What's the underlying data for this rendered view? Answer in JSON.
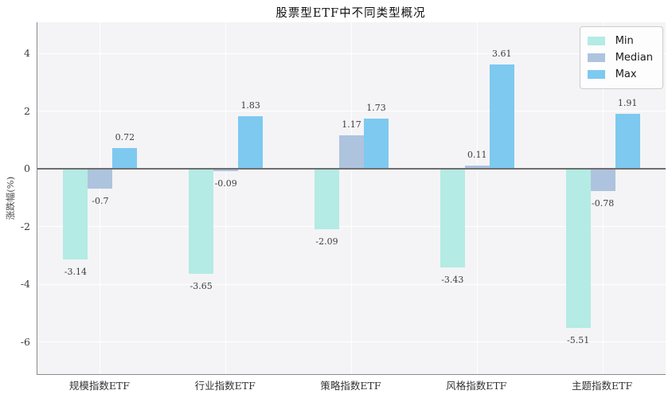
{
  "title": "股票型ETF中不同类型概况",
  "chart_data": {
    "type": "bar",
    "title": "股票型ETF中不同类型概况",
    "xlabel": "",
    "ylabel": "涨跌幅(%)",
    "categories": [
      "规模指数ETF",
      "行业指数ETF",
      "策略指数ETF",
      "风格指数ETF",
      "主题指数ETF"
    ],
    "series": [
      {
        "name": "Min",
        "color": "#b4ebe4",
        "values": [
          -3.14,
          -3.65,
          -2.09,
          -3.43,
          -5.51
        ]
      },
      {
        "name": "Median",
        "color": "#aec3de",
        "values": [
          -0.7,
          -0.09,
          1.17,
          0.11,
          -0.78
        ]
      },
      {
        "name": "Max",
        "color": "#7dc9f0",
        "values": [
          0.72,
          1.83,
          1.73,
          3.61,
          1.91
        ]
      }
    ],
    "yticks": [
      4,
      2,
      0,
      -2,
      -4,
      -6
    ],
    "ylim": [
      -7.1,
      5.05
    ],
    "grid": true,
    "legend_position": "upper right",
    "bar_labels_shown": true,
    "plot_background": "#f4f4f6",
    "gridline_color": "#ffffff",
    "zero_line_color": "#6e6e6e"
  }
}
